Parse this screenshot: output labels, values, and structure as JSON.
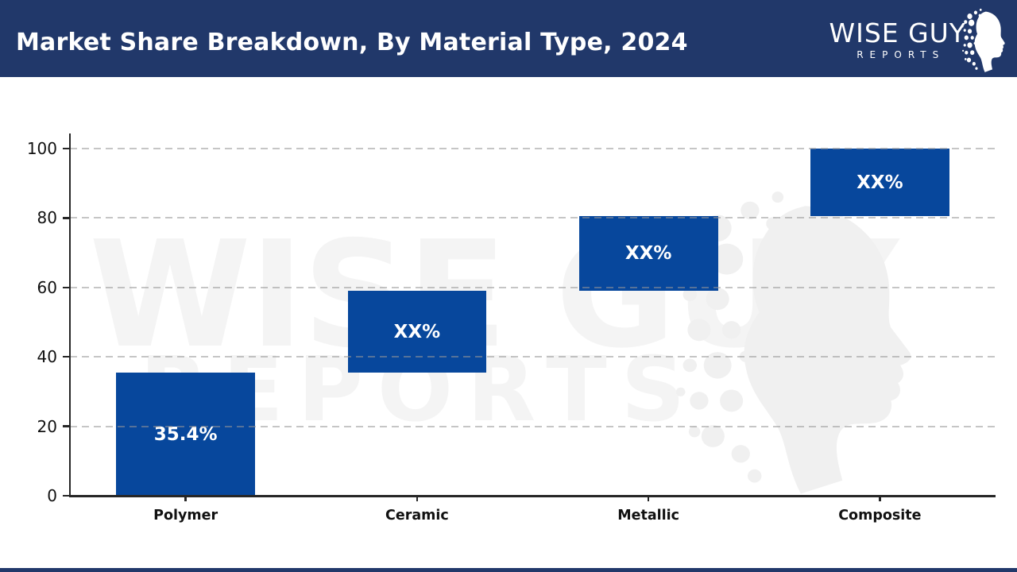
{
  "header": {
    "title": "Market Share Breakdown, By Material Type, 2024",
    "background_color": "#21386a",
    "text_color": "#ffffff",
    "logo": {
      "wordmark": "WISE GUY",
      "subtext": "REPORTS",
      "icon": "face-profile-dots-icon",
      "color": "#ffffff"
    }
  },
  "watermark": {
    "line1": "WISE GUY",
    "line2": "REPORTS",
    "icon": "face-profile-dots-icon",
    "color": "#f4f4f4"
  },
  "chart_data": {
    "type": "bar",
    "subtype": "waterfall",
    "title": "Market Share Breakdown, By Material Type, 2024",
    "categories": [
      "Polymer",
      "Ceramic",
      "Metallic",
      "Composite"
    ],
    "segments": [
      {
        "category": "Polymer",
        "start": 0,
        "end": 35.4,
        "label": "35.4%"
      },
      {
        "category": "Ceramic",
        "start": 35.4,
        "end": 59.1,
        "label": "XX%"
      },
      {
        "category": "Metallic",
        "start": 59.1,
        "end": 80.5,
        "label": "XX%"
      },
      {
        "category": "Composite",
        "start": 80.5,
        "end": 100,
        "label": "XX%"
      }
    ],
    "ylim": [
      0,
      100
    ],
    "y_ticks": [
      0,
      20,
      40,
      60,
      80,
      100
    ],
    "xlabel": "",
    "ylabel": "",
    "grid": "horizontal-dashed",
    "legend": "none",
    "bar_color": "#07479c",
    "bar_label_color": "#ffffff",
    "axis_color": "#262626",
    "tick_label_color": "#111111"
  },
  "footer": {
    "background_color": "#21386a"
  }
}
